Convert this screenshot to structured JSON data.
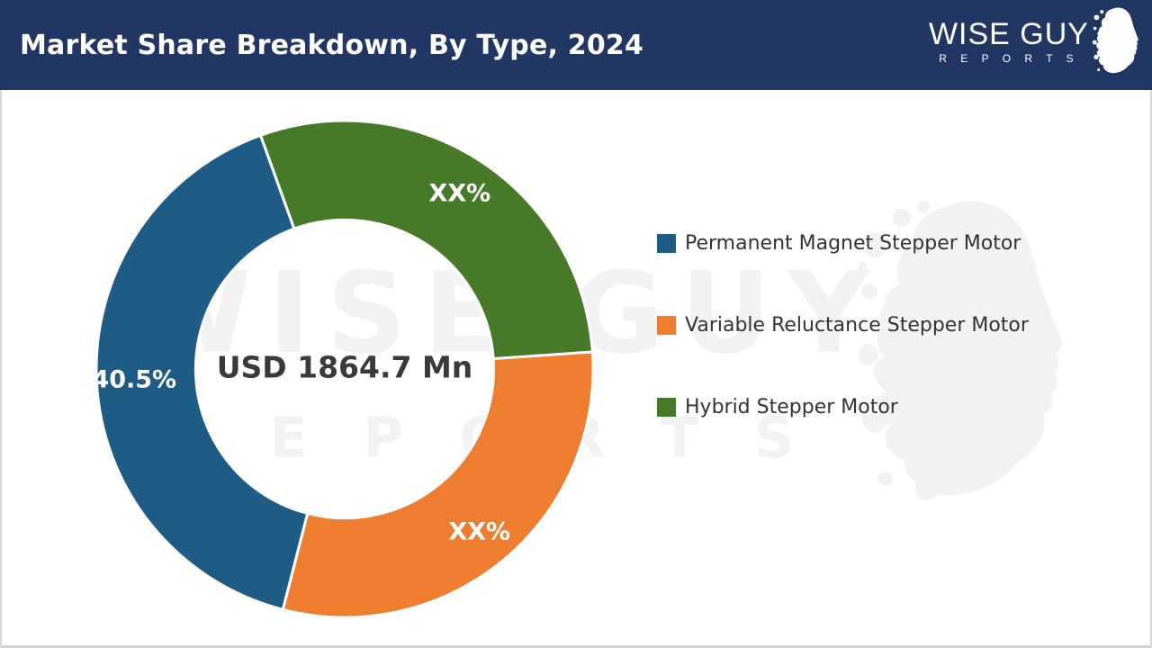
{
  "header": {
    "title": "Market Share Breakdown, By Type, 2024",
    "bg_color": "#213663",
    "logo": {
      "line1": "WISE GUY",
      "line2": "R E P O R T S"
    }
  },
  "watermark": {
    "line1": "WISE GUY",
    "line2": "R E P O R T S"
  },
  "chart_data": {
    "type": "pie",
    "subtype": "donut",
    "title": "Market Share Breakdown, By Type, 2024",
    "center_label": "USD 1864.7 Mn",
    "donut_hole_ratio": 0.6,
    "start_angle_deg": 109.8,
    "direction": "counterclockwise",
    "legend_position": "right",
    "segments": [
      {
        "name": "Permanent Magnet Stepper Motor",
        "percent": 40.5,
        "label": "40.5%",
        "color": "#1F5C85"
      },
      {
        "name": "Variable Reluctance Stepper Motor",
        "percent": 30.1,
        "label": "XX%",
        "color": "#EE7D30"
      },
      {
        "name": "Hybrid Stepper Motor",
        "percent": 29.4,
        "label": "XX%",
        "color": "#467A28"
      }
    ]
  },
  "legend": {
    "items": [
      {
        "label": "Permanent Magnet Stepper Motor",
        "color": "#1F5C85"
      },
      {
        "label": "Variable Reluctance Stepper Motor",
        "color": "#EE7D30"
      },
      {
        "label": "Hybrid Stepper Motor",
        "color": "#467A28"
      }
    ]
  }
}
